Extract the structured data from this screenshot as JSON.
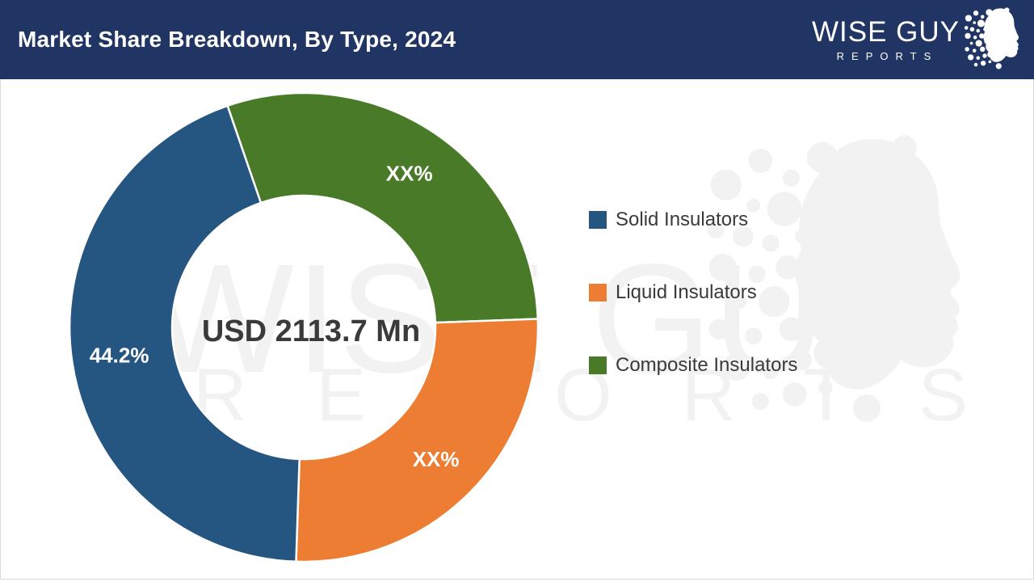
{
  "header": {
    "title": "Market Share Breakdown, By Type, 2024"
  },
  "brand": {
    "name": "WISE GUY",
    "subtext": "REPORTS"
  },
  "watermark": {
    "name": "WISE GUY",
    "subtext": "REPORTS"
  },
  "chart_data": {
    "type": "pie",
    "subtype": "donut",
    "title": "Market Share Breakdown, By Type, 2024",
    "center_label": "USD 2113.7 Mn",
    "unit": "percent share",
    "start_angle_deg": -19,
    "legend_position": "right",
    "segments": [
      {
        "label": "Composite Insulators",
        "display_value": "XX%",
        "pct_estimate": 29.7,
        "color": "#487a28"
      },
      {
        "label": "Liquid Insulators",
        "display_value": "XX%",
        "pct_estimate": 26.1,
        "color": "#ec7d33"
      },
      {
        "label": "Solid Insulators",
        "display_value": "44.2%",
        "pct_estimate": 44.2,
        "color": "#255581"
      }
    ]
  },
  "legend": {
    "items": [
      {
        "label": "Solid Insulators",
        "color": "#255581"
      },
      {
        "label": "Liquid Insulators",
        "color": "#ec7d33"
      },
      {
        "label": "Composite Insulators",
        "color": "#487a28"
      }
    ]
  },
  "colors": {
    "header_bg": "#203563",
    "watermark": "#f2f2f3",
    "text_dark": "#3a3a3a",
    "card_border": "#d9d9d9"
  }
}
